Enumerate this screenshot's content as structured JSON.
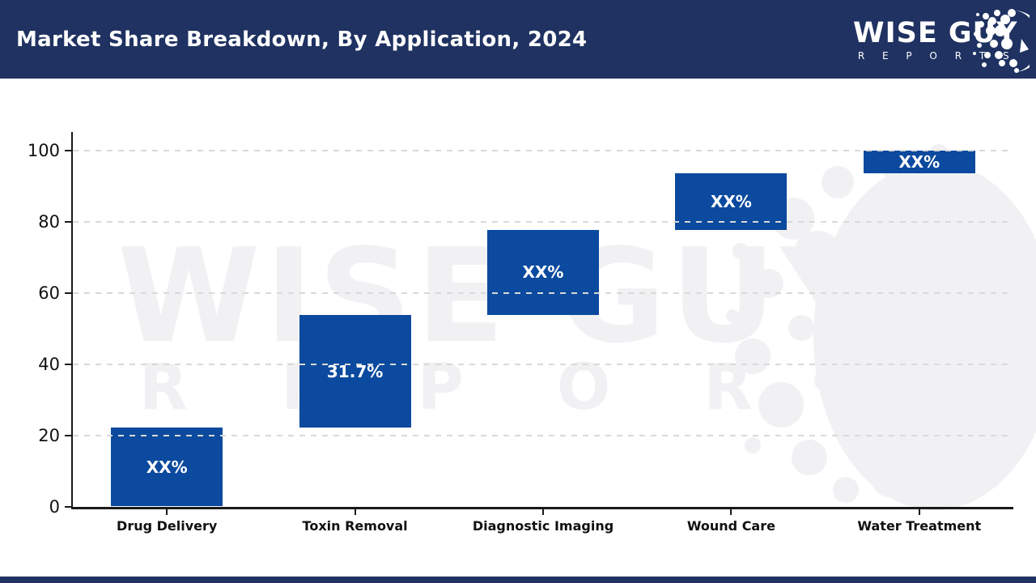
{
  "header": {
    "title": "Market Share Breakdown, By Application, 2024",
    "bg_color": "#1f3261",
    "logo": {
      "brand": "WISE GUY",
      "sub": "R E P O R T S"
    }
  },
  "watermark": {
    "line1": "WISE GUY",
    "line2": "R E P O R T S"
  },
  "footer": {
    "bg_color": "#1f3261"
  },
  "chart_data": {
    "type": "bar",
    "subtype": "waterfall",
    "title": "Market Share Breakdown, By Application, 2024",
    "categories": [
      "Drug Delivery",
      "Toxin Removal",
      "Diagnostic Imaging",
      "Wound Care",
      "Water Treatment"
    ],
    "segments": [
      {
        "category": "Drug Delivery",
        "start": 0,
        "end": 22.1,
        "size": 22.1,
        "label": "XX%"
      },
      {
        "category": "Toxin Removal",
        "start": 22.1,
        "end": 53.8,
        "size": 31.7,
        "label": "31.7%"
      },
      {
        "category": "Diagnostic Imaging",
        "start": 53.8,
        "end": 77.6,
        "size": 23.8,
        "label": "XX%"
      },
      {
        "category": "Wound Care",
        "start": 77.6,
        "end": 93.5,
        "size": 15.9,
        "label": "XX%"
      },
      {
        "category": "Water Treatment",
        "start": 93.5,
        "end": 100,
        "size": 6.5,
        "label": "XX%"
      }
    ],
    "yticks": [
      0,
      20,
      40,
      60,
      80,
      100
    ],
    "ylim": [
      0,
      105
    ],
    "xlabel": "",
    "ylabel": "",
    "legend": "none",
    "grid": "horizontal-dashed",
    "bar_color": "#0b4a9e",
    "bar_label_color": "#ffffff",
    "grid_color": "#d9d9d9",
    "axis_color": "#1a1a1a"
  }
}
